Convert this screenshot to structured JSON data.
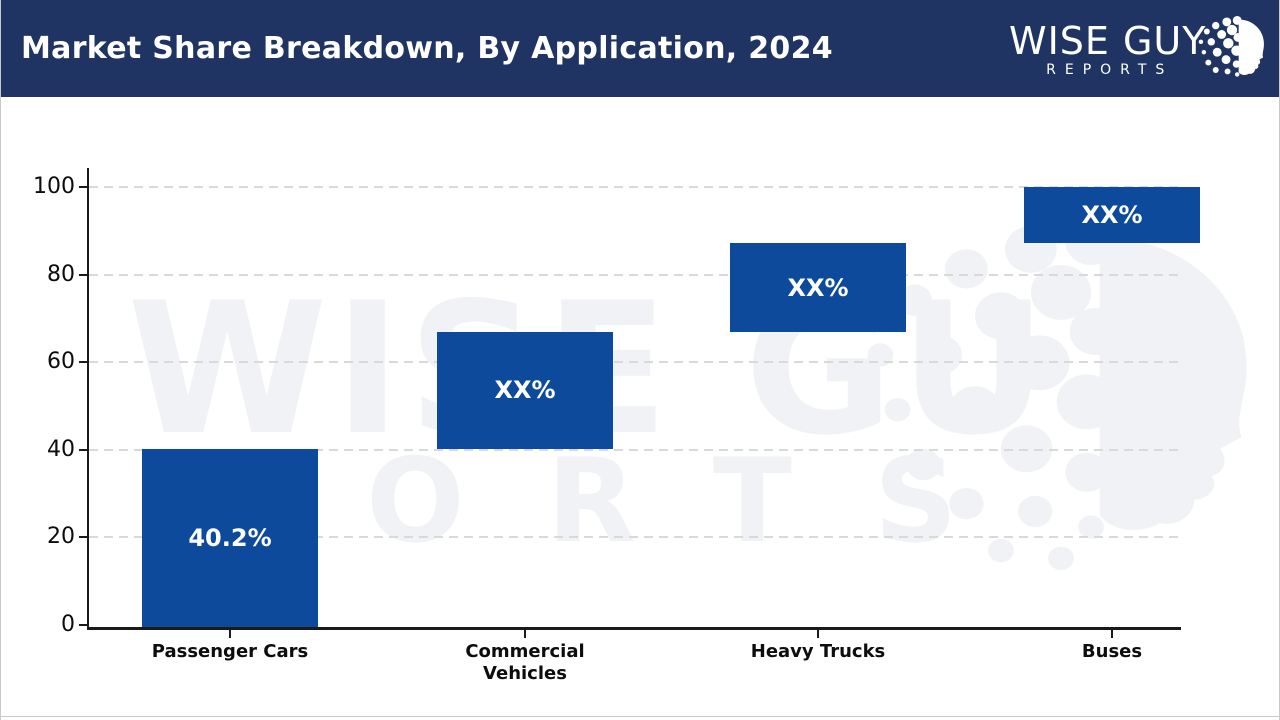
{
  "header": {
    "title": "Market Share Breakdown, By Application, 2024",
    "logo": {
      "line1": "WISE GUY",
      "line2": "REPORTS"
    }
  },
  "watermark": {
    "line1": "WISE GU",
    "line2": "PORTS"
  },
  "colors": {
    "header_bg": "#1f3462",
    "bar_blue": "#0d4a9b",
    "grid_gray": "#d9d9d9",
    "axis_black": "#1a1a1a",
    "watermark_gray": "#f1f2f5",
    "page_border": "#c9c9c9",
    "title_text": "#ffffff",
    "bar_label_text": "#ffffff"
  },
  "chart_data": {
    "type": "bar",
    "subtype": "floating-stacked-percent",
    "title": "Market Share Breakdown, By Application, 2024",
    "categories": [
      "Passenger Cars",
      "Commercial Vehicles",
      "Heavy Trucks",
      "Buses"
    ],
    "bars": [
      {
        "category": "Passenger Cars",
        "start": 0,
        "end": 40.2,
        "label": "40.2%"
      },
      {
        "category": "Commercial Vehicles",
        "start": 40.2,
        "end": 66.9,
        "label": "XX%"
      },
      {
        "category": "Heavy Trucks",
        "start": 66.9,
        "end": 87.2,
        "label": "XX%"
      },
      {
        "category": "Buses",
        "start": 87.2,
        "end": 100.0,
        "label": "XX%"
      }
    ],
    "yticks": [
      0,
      20,
      40,
      60,
      80,
      100
    ],
    "ylim": [
      0,
      105
    ],
    "xlabel": "",
    "ylabel": "",
    "grid": "dashed-horizontal",
    "legend": "none",
    "bar_color": "#0d4a9b"
  }
}
